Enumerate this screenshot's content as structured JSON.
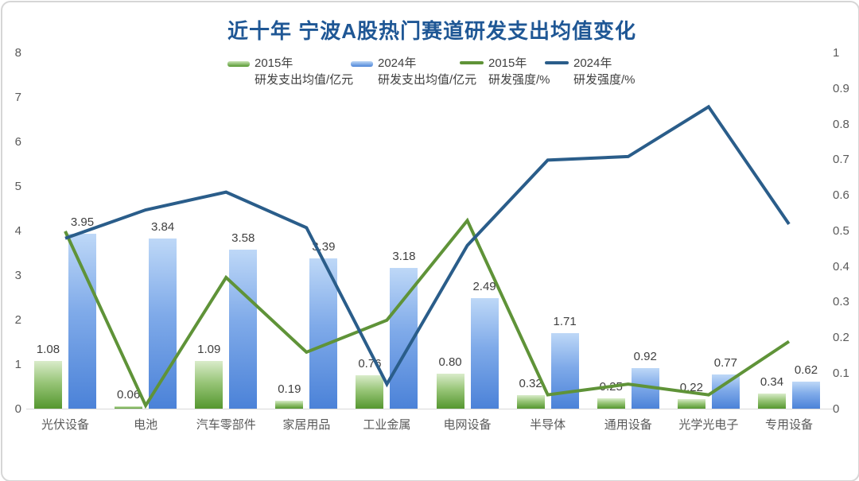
{
  "title": "近十年 宁波A股热门赛道研发支出均值变化",
  "legend": [
    {
      "swatch": "bar-green",
      "line1": "2015年",
      "line2": "研发支出均值/亿元"
    },
    {
      "swatch": "bar-blue",
      "line1": "2024年",
      "line2": "研发支出均值/亿元"
    },
    {
      "swatch": "line-green",
      "line1": "2015年",
      "line2": "研发强度/%"
    },
    {
      "swatch": "line-blue",
      "line1": "2024年",
      "line2": "研发强度/%"
    }
  ],
  "colors": {
    "title": "#1f5795",
    "bar_green_top": "#d9ecca",
    "bar_green_bottom": "#55972f",
    "bar_blue_top": "#bed8f7",
    "bar_blue_bottom": "#4b82d8",
    "line_green": "#5f9338",
    "line_blue": "#2a5d8a",
    "axis_text": "#595959",
    "data_label": "#404040",
    "axis_line": "#d9d9d9"
  },
  "chart_data": {
    "type": "combo-bar-line",
    "title": "近十年 宁波A股热门赛道研发支出均值变化",
    "categories": [
      "光伏设备",
      "电池",
      "汽车零部件",
      "家居用品",
      "工业金属",
      "电网设备",
      "半导体",
      "通用设备",
      "光学光电子",
      "专用设备"
    ],
    "series": [
      {
        "name": "2015年 研发支出均值/亿元",
        "type": "bar",
        "axis": "left",
        "values": [
          1.08,
          0.06,
          1.09,
          0.19,
          0.76,
          0.8,
          0.32,
          0.25,
          0.22,
          0.34
        ],
        "labels": [
          "1.08",
          "0.06",
          "1.09",
          "0.19",
          "0.76",
          "0.80",
          "0.32",
          "0.25",
          "0.22",
          "0.34"
        ]
      },
      {
        "name": "2024年 研发支出均值/亿元",
        "type": "bar",
        "axis": "left",
        "values": [
          3.95,
          3.84,
          3.58,
          3.39,
          3.18,
          2.49,
          1.71,
          0.92,
          0.77,
          0.62
        ],
        "labels": [
          "3.95",
          "3.84",
          "3.58",
          "3.39",
          "3.18",
          "2.49",
          "1.71",
          "0.92",
          "0.77",
          "0.62"
        ]
      },
      {
        "name": "2015年 研发强度/%",
        "type": "line",
        "axis": "right",
        "values": [
          0.5,
          0.01,
          0.37,
          0.16,
          0.25,
          0.53,
          0.04,
          0.07,
          0.04,
          0.19
        ]
      },
      {
        "name": "2024年 研发强度/%",
        "type": "line",
        "axis": "right",
        "values": [
          0.48,
          0.56,
          0.61,
          0.51,
          0.07,
          0.46,
          0.7,
          0.71,
          0.85,
          0.52
        ]
      }
    ],
    "left_axis": {
      "min": 0,
      "max": 8,
      "step": 1,
      "ticks": [
        "0",
        "1",
        "2",
        "3",
        "4",
        "5",
        "6",
        "7",
        "8"
      ]
    },
    "right_axis": {
      "min": 0,
      "max": 1,
      "step": 0.1,
      "ticks": [
        "0",
        "0.1",
        "0.2",
        "0.3",
        "0.4",
        "0.5",
        "0.6",
        "0.7",
        "0.8",
        "0.9",
        "1"
      ]
    },
    "grid": false,
    "legend_position": "top",
    "data_labels": "bars-only"
  }
}
